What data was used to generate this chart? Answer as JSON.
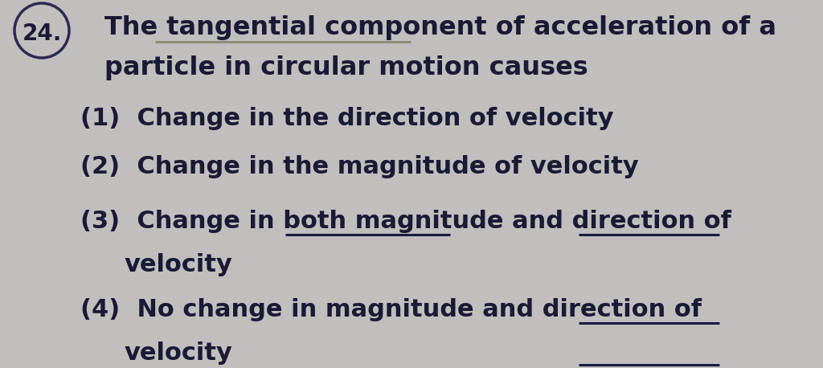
{
  "background_color": "#c0bfbe",
  "text_color": "#1a1a35",
  "circle_color": "#2a2a50",
  "q_num": "24.",
  "q_line1": "The tangential component of acceleration of a",
  "q_line2": "particle in circular motion causes",
  "opt1": "(1)  Change in the direction of velocity",
  "opt2": "(2)  Change in the magnitude of velocity",
  "opt3a": "(3)  Change in both magnitude and direction of",
  "opt3b": "      velocity",
  "opt4a": "(4)  No change in magnitude and direction of",
  "opt4b": "      velocity",
  "underline_color": "#1a1a40",
  "font_size_q": 23,
  "font_size_opt": 22
}
